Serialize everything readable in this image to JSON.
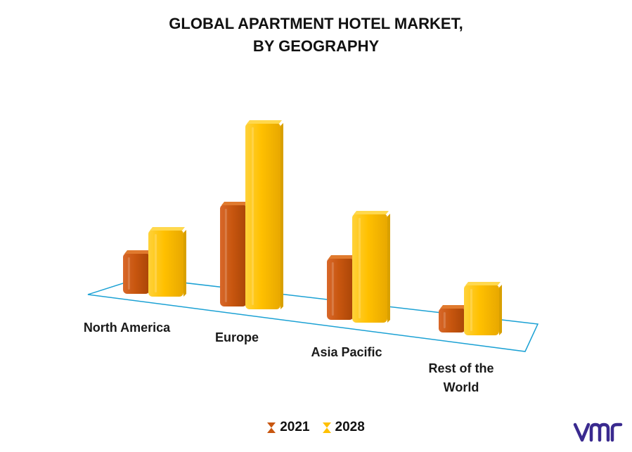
{
  "title_line1": "GLOBAL APARTMENT HOTEL MARKET,",
  "title_line2": "BY GEOGRAPHY",
  "colors": {
    "s2021": "#C8560F",
    "s2021_side": "#9A3F08",
    "s2021_top": "#E07A2E",
    "s2028": "#FFC000",
    "s2028_side": "#D9A000",
    "s2028_top": "#FFD84D",
    "floor": "#1BA1D4"
  },
  "chart_data": {
    "type": "bar",
    "title": "GLOBAL APARTMENT HOTEL MARKET, BY GEOGRAPHY",
    "categories": [
      "North America",
      "Europe",
      "Asia Pacific",
      "Rest of the World"
    ],
    "category_label_lines": [
      [
        "North America"
      ],
      [
        "Europe"
      ],
      [
        "Asia Pacific"
      ],
      [
        "Rest of the",
        "World"
      ]
    ],
    "series": [
      {
        "name": "2021",
        "values": [
          58,
          145,
          88,
          35
        ]
      },
      {
        "name": "2028",
        "values": [
          95,
          265,
          155,
          72
        ]
      }
    ],
    "ylim": [
      0,
      280
    ],
    "grid": false,
    "legend_position": "bottom",
    "three_d": true
  },
  "legend": [
    {
      "label": "2021",
      "icon": "hourglass-icon"
    },
    {
      "label": "2028",
      "icon": "hourglass-icon"
    }
  ],
  "logo_text": "vmr"
}
